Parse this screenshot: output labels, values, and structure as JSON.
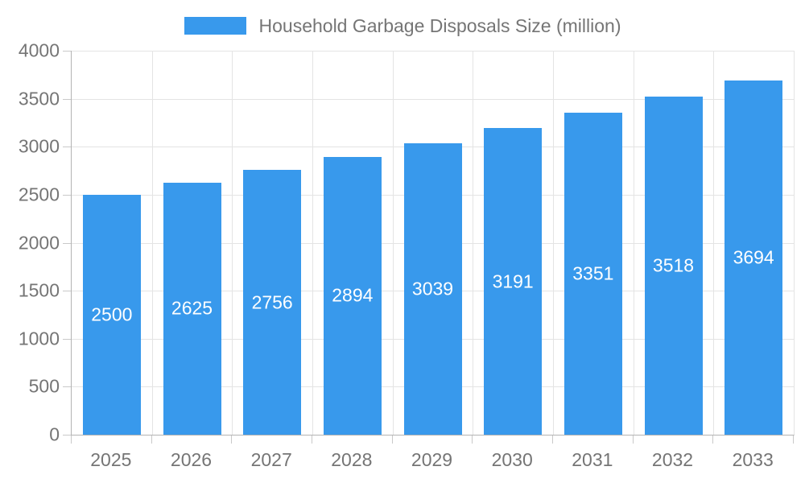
{
  "chart_data": {
    "type": "bar",
    "title": "Household Garbage Disposals Size (million)",
    "categories": [
      "2025",
      "2026",
      "2027",
      "2028",
      "2029",
      "2030",
      "2031",
      "2032",
      "2033"
    ],
    "values": [
      2500,
      2625,
      2756,
      2894,
      3039,
      3191,
      3351,
      3518,
      3694
    ],
    "xlabel": "",
    "ylabel": "",
    "ylim": [
      0,
      4000
    ],
    "yticks": [
      0,
      500,
      1000,
      1500,
      2000,
      2500,
      3000,
      3500,
      4000
    ],
    "grid": true,
    "legend_position": "top-center",
    "bar_labels_inside": true,
    "colors": {
      "bar": "#3899ec",
      "bar_label_text": "#ffffff",
      "axis_text": "#757575",
      "axis_line": "#b3b3b3",
      "gridline": "#e4e4e4",
      "tick": "#c9c9c9",
      "background": "#ffffff"
    }
  }
}
